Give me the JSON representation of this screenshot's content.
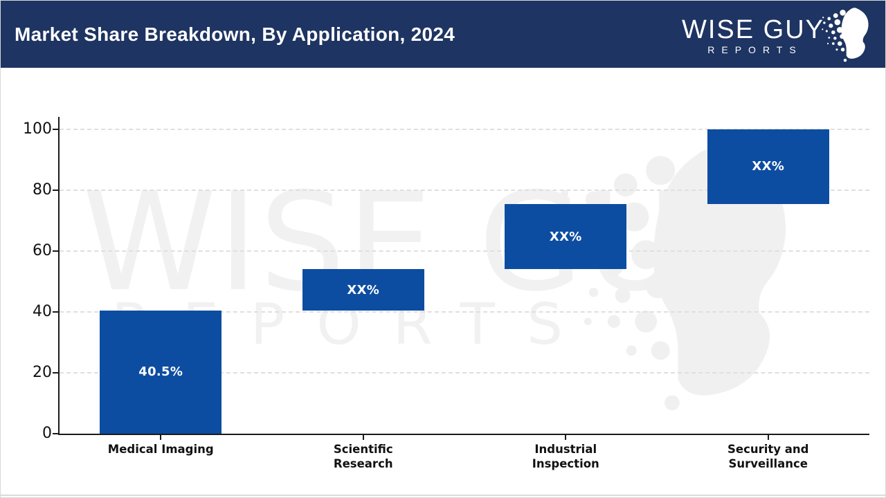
{
  "header": {
    "title": "Market Share Breakdown, By Application, 2024",
    "logo": {
      "wordmark": "WISE GUY",
      "sub": "REPORTS",
      "icon": "dotted-face"
    }
  },
  "watermark": {
    "line1": "WISE GUY",
    "line2": "REPORTS"
  },
  "colors": {
    "header_bg": "#1e3462",
    "bar": "#0d4da1",
    "bar_label": "#ffffff",
    "axis": "#1a1a1a",
    "grid": "#dfdfdf",
    "watermark": "#f1f1f1"
  },
  "chart_data": {
    "type": "bar",
    "subtype": "waterfall",
    "title": "Market Share Breakdown, By Application, 2024",
    "categories": [
      "Medical Imaging",
      "Scientific\nResearch",
      "Industrial\nInspection",
      "Security and\nSurveillance"
    ],
    "bars": [
      {
        "category": "Medical Imaging",
        "start": 0,
        "end": 40.5,
        "label": "40.5%"
      },
      {
        "category": "Scientific Research",
        "start": 40.5,
        "end": 54,
        "label": "XX%"
      },
      {
        "category": "Industrial Inspection",
        "start": 54,
        "end": 75.5,
        "label": "XX%"
      },
      {
        "category": "Security and Surveillance",
        "start": 75.5,
        "end": 100,
        "label": "XX%"
      }
    ],
    "xlabel": "",
    "ylabel": "",
    "y_ticks": [
      0,
      20,
      40,
      60,
      80,
      100
    ],
    "ylim": [
      0,
      104
    ],
    "grid": "horizontal-dashed",
    "legend": "none"
  }
}
